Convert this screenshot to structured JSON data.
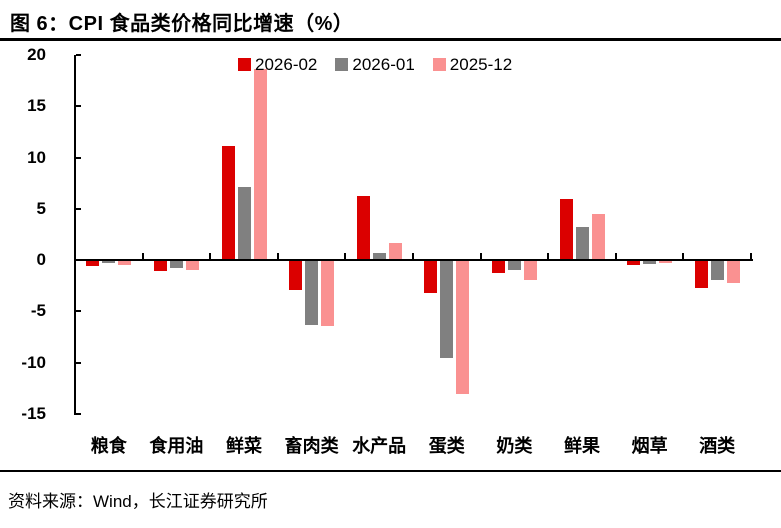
{
  "figure": {
    "title": "图 6：CPI 食品类价格同比增速（%）",
    "source_note": "资料来源：Wind，长江证券研究所"
  },
  "chart_data": {
    "type": "bar",
    "title": "CPI 食品类价格同比增速（%）",
    "categories": [
      "粮食",
      "食用油",
      "鲜菜",
      "畜肉类",
      "水产品",
      "蛋类",
      "奶类",
      "鲜果",
      "烟草",
      "酒类"
    ],
    "series": [
      {
        "name": "2026-02",
        "color": "#db0000",
        "values": [
          -0.5,
          -1.0,
          11.0,
          -2.8,
          6.1,
          -3.1,
          -1.2,
          5.9,
          -0.4,
          -2.6
        ]
      },
      {
        "name": "2026-01",
        "color": "#808080",
        "values": [
          -0.2,
          -0.7,
          7.0,
          -6.2,
          0.6,
          -9.5,
          -0.9,
          3.1,
          -0.3,
          -1.9
        ]
      },
      {
        "name": "2025-12",
        "color": "#fa9191",
        "values": [
          -0.4,
          -0.9,
          18.5,
          -6.3,
          1.6,
          -13.0,
          -1.9,
          4.4,
          -0.2,
          -2.1
        ]
      }
    ],
    "xlabel": "",
    "ylabel": "",
    "ylim": [
      -15,
      20
    ],
    "yticks": [
      20,
      15,
      10,
      5,
      0,
      -5,
      -10,
      -15
    ],
    "legend_position": "top-center",
    "grid": false
  }
}
